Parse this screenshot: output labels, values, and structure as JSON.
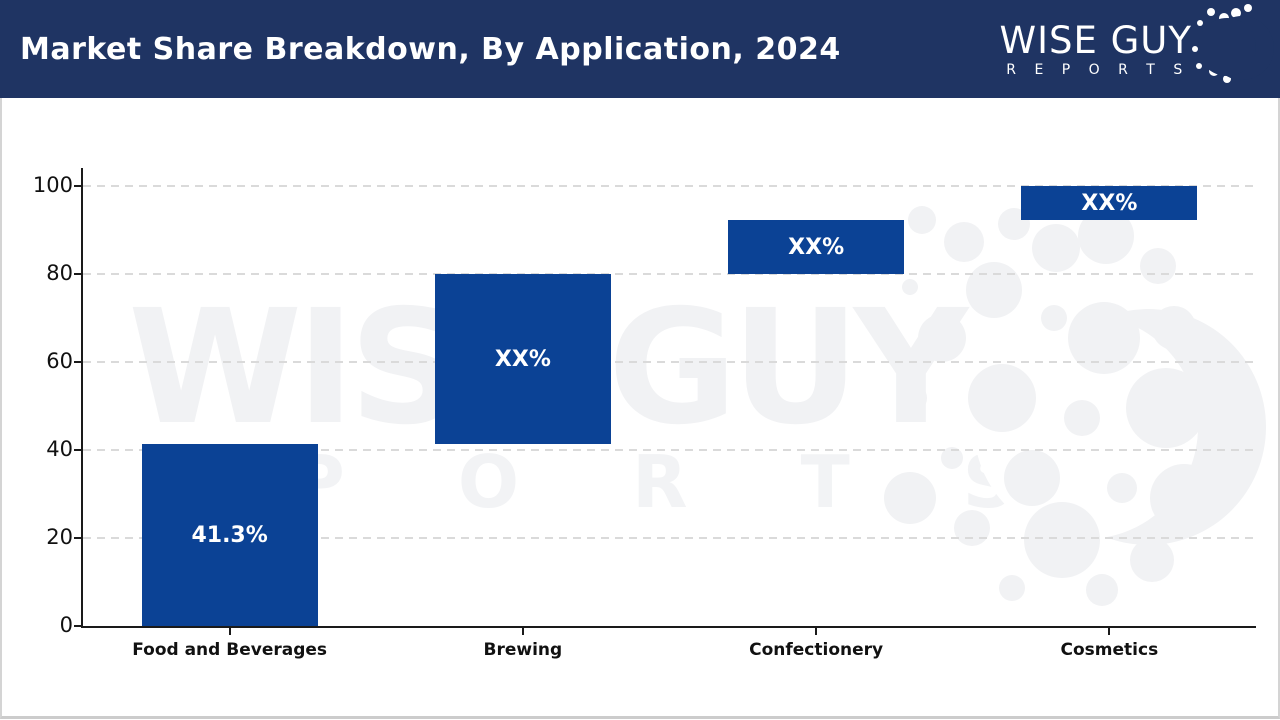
{
  "header": {
    "title": "Market Share Breakdown, By Application, 2024",
    "bg_color": "#1f3463",
    "logo": {
      "line1": "WISE GUY",
      "line2": "R E P O R T S"
    }
  },
  "watermark": {
    "line1": "WISE GUY",
    "line2": "P O R T S"
  },
  "chart_data": {
    "type": "bar",
    "subtype": "waterfall",
    "title": "Market Share Breakdown, By Application, 2024",
    "xlabel": "",
    "ylabel": "",
    "ylim": [
      0,
      100
    ],
    "yticks": [
      0,
      20,
      40,
      60,
      80,
      100
    ],
    "grid": "horizontal dashed",
    "legend": "none",
    "categories": [
      "Food and Beverages",
      "Brewing",
      "Confectionery",
      "Cosmetics"
    ],
    "segments": [
      {
        "category": "Food and Beverages",
        "start": 0,
        "end": 41.3,
        "label": "41.3%"
      },
      {
        "category": "Brewing",
        "start": 41.3,
        "end": 80,
        "label": "XX%"
      },
      {
        "category": "Confectionery",
        "start": 80,
        "end": 92.2,
        "label": "XX%"
      },
      {
        "category": "Cosmetics",
        "start": 92.2,
        "end": 100,
        "label": "XX%"
      }
    ],
    "bar_color": "#0b4295",
    "bar_label_color": "#ffffff",
    "axis_color": "#1a1a1a",
    "gridline_color": "#dadada"
  }
}
